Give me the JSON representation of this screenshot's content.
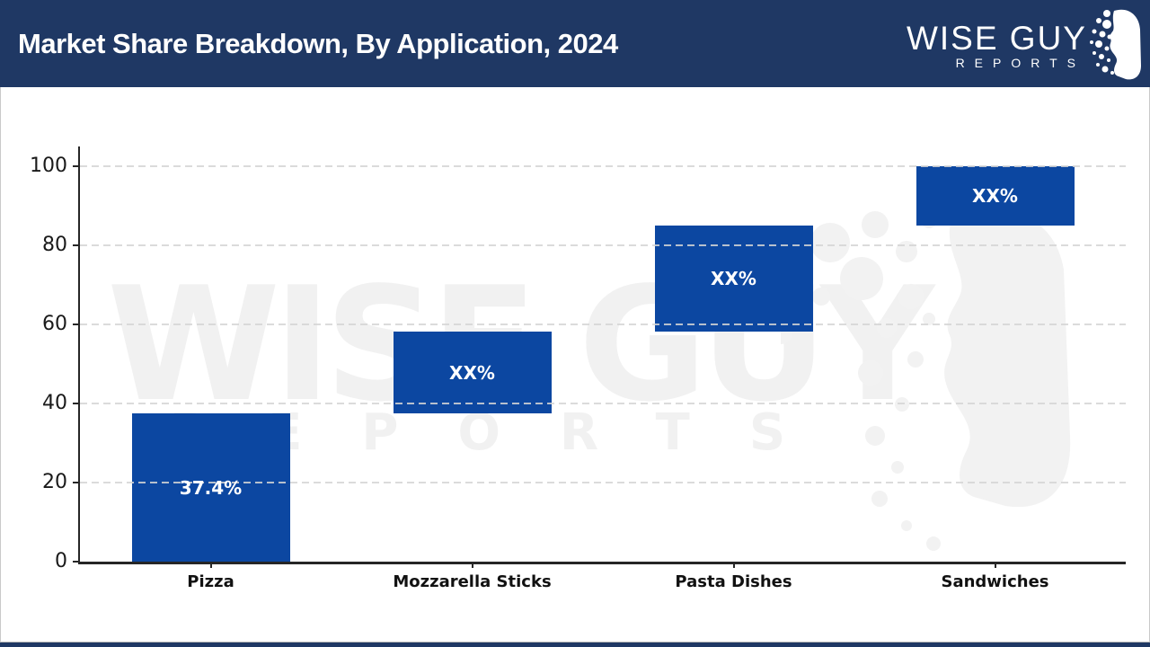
{
  "header": {
    "title": "Market Share Breakdown, By Application, 2024",
    "bg_color": "#1f3864",
    "logo": {
      "line1": "WISE GUY",
      "line2": "REPORTS"
    }
  },
  "watermark": {
    "line1": "WISE GUY",
    "line2": "REPORTS"
  },
  "chart_data": {
    "type": "bar",
    "subtype": "waterfall",
    "title": "Market Share Breakdown, By Application, 2024",
    "categories": [
      "Pizza",
      "Mozzarella Sticks",
      "Pasta Dishes",
      "Sandwiches"
    ],
    "segments": [
      {
        "label": "Pizza",
        "start": 0,
        "end": 37.4,
        "value_label": "37.4%"
      },
      {
        "label": "Mozzarella Sticks",
        "start": 37.4,
        "end": 58.2,
        "value_label": "XX%"
      },
      {
        "label": "Pasta Dishes",
        "start": 58.2,
        "end": 85.0,
        "value_label": "XX%"
      },
      {
        "label": "Sandwiches",
        "start": 85.0,
        "end": 100.0,
        "value_label": "XX%"
      }
    ],
    "yticks": [
      0,
      20,
      40,
      60,
      80,
      100
    ],
    "ylim": [
      0,
      105
    ],
    "grid": true,
    "legend": false,
    "bar_color": "#0c47a1",
    "grid_color": "#d5d5d5",
    "axis_color": "#262626",
    "label_color": "#ffffff",
    "background": "#ffffff"
  }
}
